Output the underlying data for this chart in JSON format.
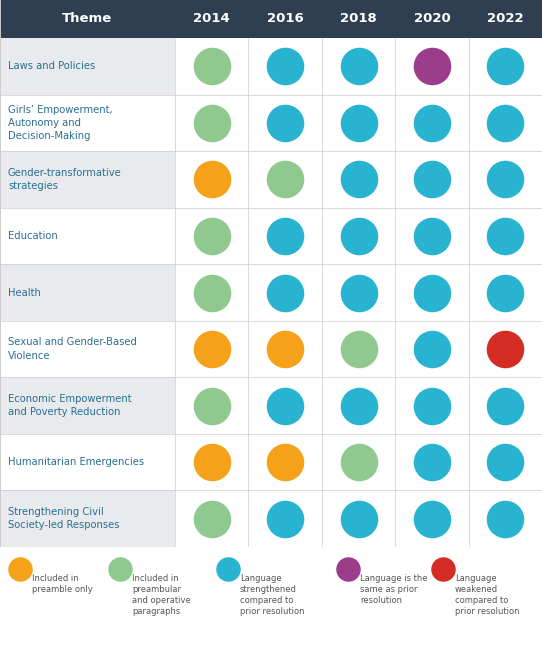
{
  "header_bg": "#2d3f50",
  "header_text_color": "#ffffff",
  "row_bg_odd": "#e8eaed",
  "row_bg_even": "#ffffff",
  "header_labels": [
    "Theme",
    "2014",
    "2016",
    "2018",
    "2020",
    "2022"
  ],
  "themes": [
    "Laws and Policies",
    "Girls’ Empowerment,\nAutonomy and\nDecision-Making",
    "Gender-transformative\nstrategies",
    "Education",
    "Health",
    "Sexual and Gender-Based\nViolence",
    "Economic Empowerment\nand Poverty Reduction",
    "Humanitarian Emergencies",
    "Strengthening Civil\nSociety-led Responses"
  ],
  "colors": {
    "orange": "#f5a11a",
    "green": "#90c990",
    "blue": "#28b4d0",
    "purple": "#9b3d8a",
    "red": "#d42b25"
  },
  "dot_data": [
    [
      "green",
      "blue",
      "blue",
      "purple",
      "blue"
    ],
    [
      "green",
      "blue",
      "blue",
      "blue",
      "blue"
    ],
    [
      "orange",
      "green",
      "blue",
      "blue",
      "blue"
    ],
    [
      "green",
      "blue",
      "blue",
      "blue",
      "blue"
    ],
    [
      "green",
      "blue",
      "blue",
      "blue",
      "blue"
    ],
    [
      "orange",
      "orange",
      "green",
      "blue",
      "red"
    ],
    [
      "green",
      "blue",
      "blue",
      "blue",
      "blue"
    ],
    [
      "orange",
      "orange",
      "green",
      "blue",
      "blue"
    ],
    [
      "green",
      "blue",
      "blue",
      "blue",
      "blue"
    ]
  ],
  "legend_items": [
    {
      "color": "#f5a11a",
      "label": "Included in\npreamble only"
    },
    {
      "color": "#90c990",
      "label": "Included in\npreambular\nand operative\nparagraphs"
    },
    {
      "color": "#28b4d0",
      "label": "Language\nstrengthened\ncompared to\nprior resolution"
    },
    {
      "color": "#9b3d8a",
      "label": "Language is the\nsame as prior\nresolution"
    },
    {
      "color": "#d42b25",
      "label": "Language\nweakened\ncompared to\nprior resolution"
    }
  ],
  "text_color": "#2a7090",
  "grid_color": "#cccccc",
  "fig_width": 5.42,
  "fig_height": 6.57,
  "dpi": 100
}
